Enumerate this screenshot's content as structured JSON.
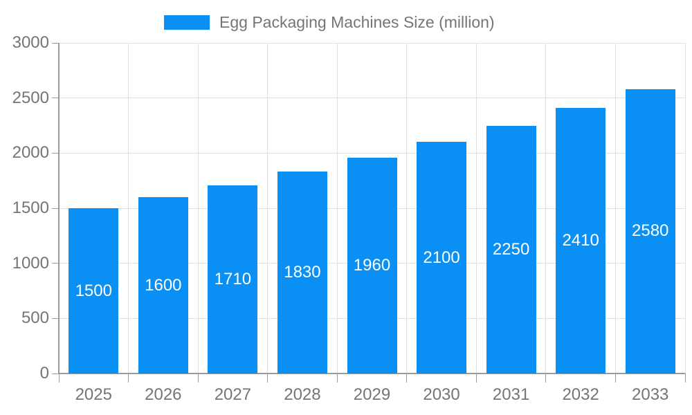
{
  "chart_data": {
    "type": "bar",
    "title": "Egg Packaging Machines Size (million)",
    "categories": [
      "2025",
      "2026",
      "2027",
      "2028",
      "2029",
      "2030",
      "2031",
      "2032",
      "2033"
    ],
    "values": [
      1500,
      1600,
      1710,
      1830,
      1960,
      2100,
      2250,
      2410,
      2580
    ],
    "series": [
      {
        "name": "Egg Packaging Machines Size (million)",
        "values": [
          1500,
          1600,
          1710,
          1830,
          1960,
          2100,
          2250,
          2410,
          2580
        ]
      }
    ],
    "xlabel": "",
    "ylabel": "",
    "ylim": [
      0,
      3000
    ],
    "yticks": [
      0,
      500,
      1000,
      1500,
      2000,
      2500,
      3000
    ],
    "grid": true,
    "legend_position": "top",
    "bar_value_labels": "inside-center",
    "colors": {
      "bar": "#0a90f5",
      "bar_label": "#ffffff",
      "axis_line": "#9a9a9a",
      "grid_line": "#e0e0e0",
      "tick_label": "#757575",
      "legend_text": "#757575",
      "background": "#ffffff"
    }
  }
}
